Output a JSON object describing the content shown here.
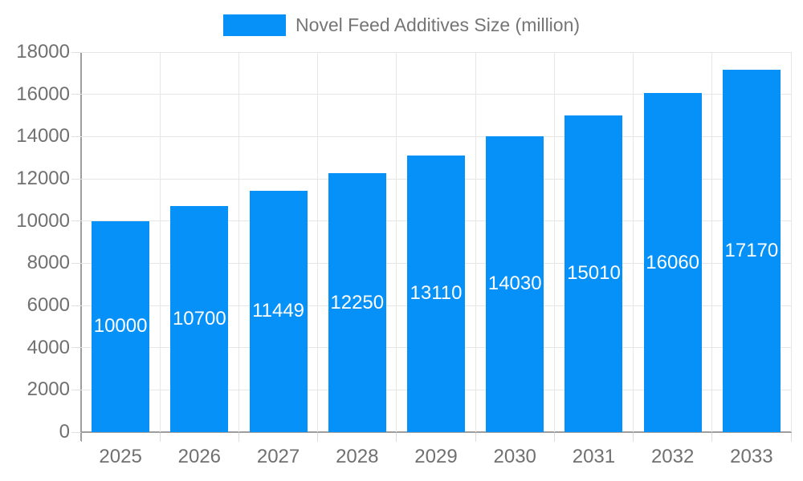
{
  "chart_data": {
    "type": "bar",
    "title": "",
    "legend": "Novel Feed Additives Size (million)",
    "legend_position": "top",
    "categories": [
      "2025",
      "2026",
      "2027",
      "2028",
      "2029",
      "2030",
      "2031",
      "2032",
      "2033"
    ],
    "values": [
      10000,
      10700,
      11449,
      12250,
      13110,
      14030,
      15010,
      16060,
      17170
    ],
    "value_labels": [
      "10000",
      "10700",
      "11449",
      "12250",
      "13110",
      "14030",
      "15010",
      "16060",
      "17170"
    ],
    "xlabel": "",
    "ylabel": "",
    "ylim": [
      0,
      18000
    ],
    "yticks": [
      0,
      2000,
      4000,
      6000,
      8000,
      10000,
      12000,
      14000,
      16000,
      18000
    ],
    "grid": true,
    "colors": {
      "bar": "#0591f8",
      "bar_value_text": "#ffffff",
      "axis_text": "#707070",
      "legend_text": "#757575",
      "gridline": "#e6e6e6",
      "axis_line": "#9e9e9e",
      "background": "#ffffff"
    }
  }
}
